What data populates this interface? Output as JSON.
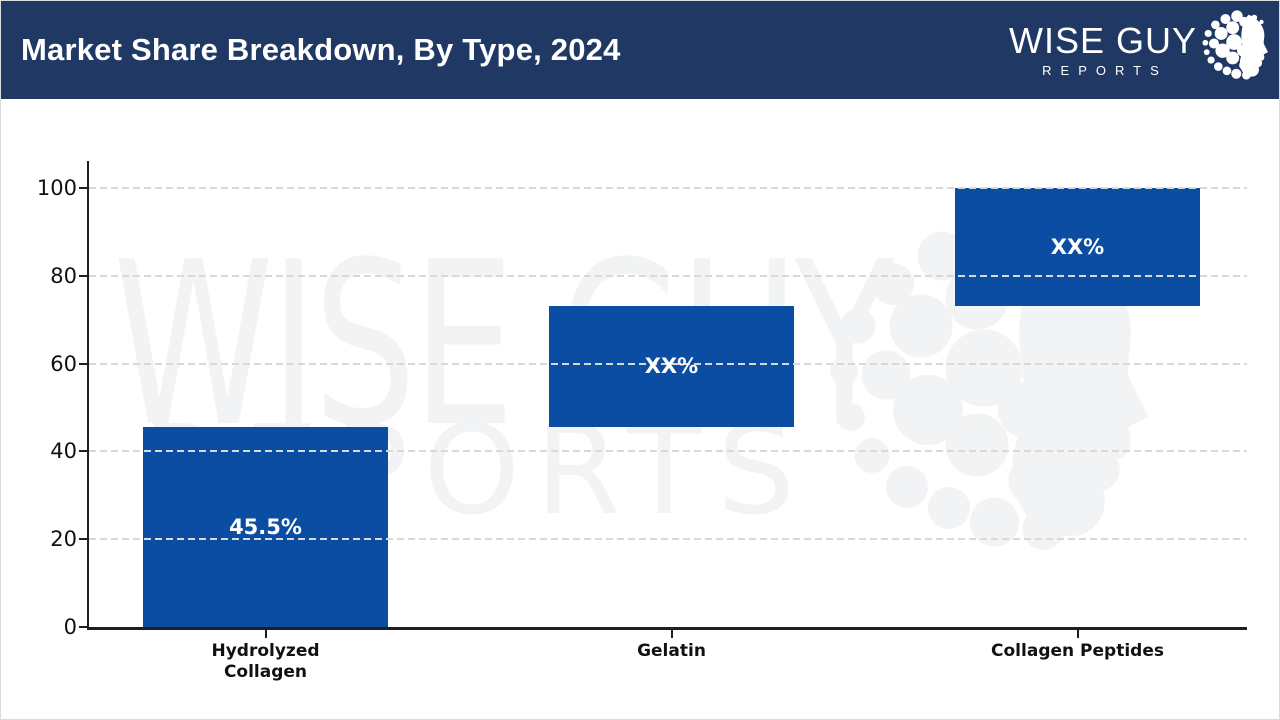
{
  "page": {
    "bg": "#FFFFFF",
    "border_color": "#DCDCDC"
  },
  "header": {
    "bg": "#203864",
    "title": "Market Share Breakdown, By Type, 2024",
    "logo": {
      "wordmark": "WISE GUY",
      "subtext": "REPORTS"
    }
  },
  "watermark": {
    "wordmark": "WISE GUY",
    "subtext": "REPORTS"
  },
  "chart_data": {
    "type": "bar",
    "subtype": "floating-segment-waterfall",
    "title": "Market Share Breakdown, By Type, 2024",
    "categories": [
      "Hydrolyzed Collagen",
      "Gelatin",
      "Collagen Peptides"
    ],
    "tick_labels": [
      "Hydrolyzed\nCollagen",
      "Gelatin",
      "Collagen Peptides"
    ],
    "series": [
      {
        "name": "Market Share (%)",
        "segments": [
          {
            "category": "Hydrolyzed Collagen",
            "from": 0,
            "to": 45.5,
            "label": "45.5%"
          },
          {
            "category": "Gelatin",
            "from": 45.5,
            "to": 73.2,
            "label": "XX%"
          },
          {
            "category": "Collagen Peptides",
            "from": 73.2,
            "to": 100,
            "label": "XX%"
          }
        ]
      }
    ],
    "ylim": [
      0,
      100
    ],
    "yticks": [
      0,
      20,
      40,
      60,
      80,
      100
    ],
    "xlabel": "",
    "ylabel": "",
    "grid": "horizontal-dashed",
    "legend": "none",
    "colors": {
      "bar": "#0B4DA2",
      "bar_label": "#FFFFFF",
      "axis": "#1F1F1F",
      "tick_label": "#111111",
      "gridline": "#D9D9D9"
    }
  }
}
